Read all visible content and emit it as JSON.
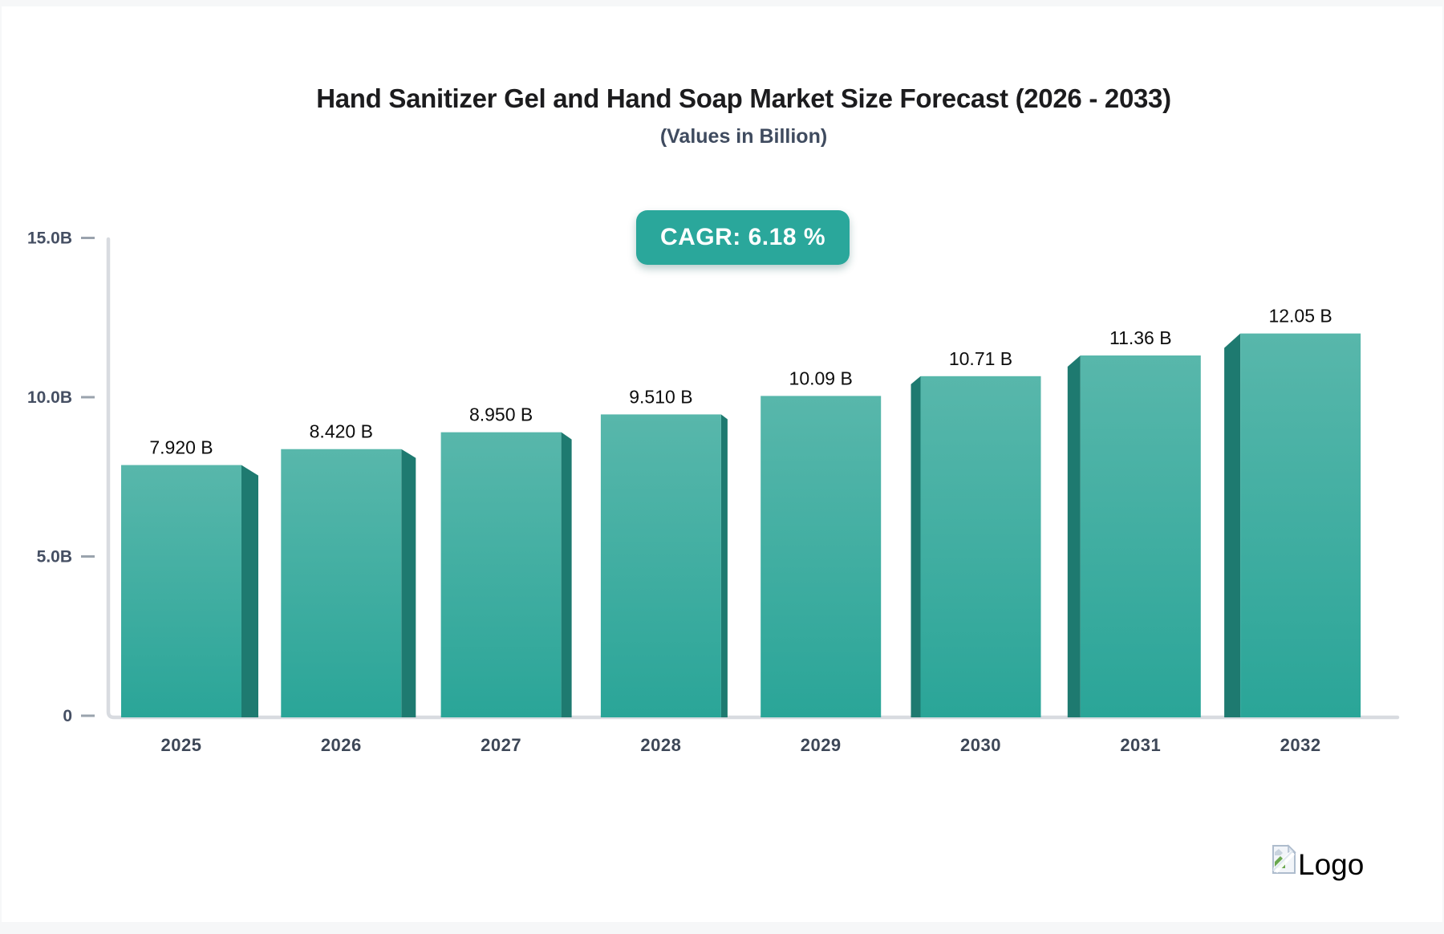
{
  "header": {
    "title": "Hand Sanitizer Gel and Hand Soap Market Size Forecast (2026 - 2033)",
    "subtitle": "(Values in Billion)",
    "cagr_badge": "CAGR: 6.18 %"
  },
  "footer": {
    "logo_alt": "Logo"
  },
  "chart_data": {
    "type": "bar",
    "style": "3d-perspective",
    "title": "Hand Sanitizer Gel and Hand Soap Market Size Forecast (2026 - 2033)",
    "subtitle": "(Values in Billion)",
    "annotation": "CAGR: 6.18 %",
    "categories": [
      "2025",
      "2026",
      "2027",
      "2028",
      "2029",
      "2030",
      "2031",
      "2032"
    ],
    "values": [
      7.92,
      8.42,
      8.95,
      9.51,
      10.09,
      10.71,
      11.36,
      12.05
    ],
    "value_labels": [
      "7.920 B",
      "8.420 B",
      "8.950 B",
      "9.510 B",
      "10.09 B",
      "10.71 B",
      "11.36 B",
      "12.05 B"
    ],
    "unit": "Billion",
    "xlabel": "",
    "ylabel": "",
    "ylim": [
      0,
      15
    ],
    "grid": false,
    "legend": "none",
    "y_ticks": [
      {
        "label": "15.0B",
        "value": 15
      },
      {
        "label": "10.0B",
        "value": 10
      },
      {
        "label": "5.0B",
        "value": 5
      },
      {
        "label": "0",
        "value": 0
      }
    ],
    "colors": {
      "bar_face_top": "#58b7ab",
      "bar_face_bottom": "#2aa598",
      "bar_side": "#1e7a70",
      "badge_background": "#2aa79b",
      "axis_line": "#d8dbe0",
      "tick_mark": "#9aa3ad",
      "y_axis_label": "#454f63",
      "category_label": "#3d4757",
      "value_label": "#0d0d0d",
      "title": "#1c1c1e",
      "subtitle": "#3f4b5f"
    }
  }
}
